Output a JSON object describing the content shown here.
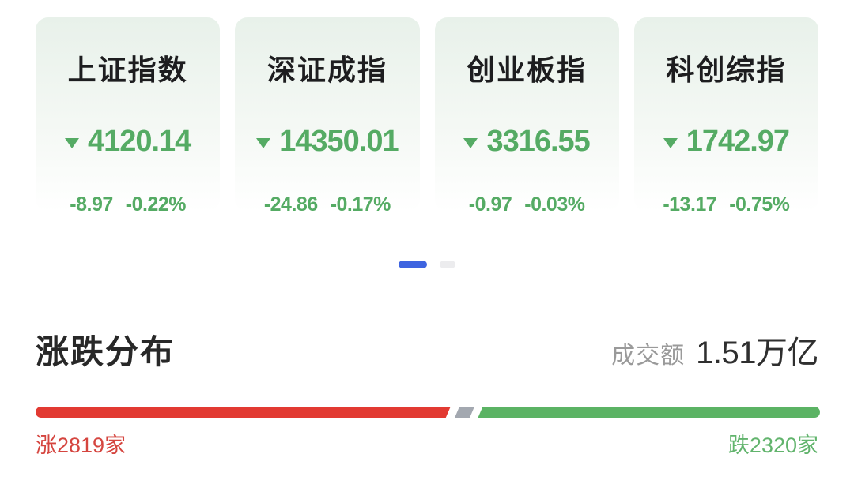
{
  "indices": {
    "cards": [
      {
        "name": "上证指数",
        "value": "4120.14",
        "change": "-8.97",
        "change_pct": "-0.22%",
        "direction": "down"
      },
      {
        "name": "深证成指",
        "value": "14350.01",
        "change": "-24.86",
        "change_pct": "-0.17%",
        "direction": "down"
      },
      {
        "name": "创业板指",
        "value": "3316.55",
        "change": "-0.97",
        "change_pct": "-0.03%",
        "direction": "down"
      },
      {
        "name": "科创综指",
        "value": "1742.97",
        "change": "-13.17",
        "change_pct": "-0.75%",
        "direction": "down"
      }
    ],
    "pagination": {
      "total_pages": 2,
      "active_page": 1
    }
  },
  "distribution": {
    "title": "涨跌分布",
    "turnover_label": "成交额",
    "turnover_value": "1.51万亿",
    "up_count": 2819,
    "down_count": 2320,
    "up_label": "涨2819家",
    "down_label": "跌2320家",
    "bar": {
      "up_width": "52.9%",
      "gap_width": "0.8%",
      "flat_width": "1.9%",
      "down_width": "43.6%"
    }
  },
  "colors": {
    "up_red": "#e23a32",
    "down_green": "#5bb364",
    "flat_gray": "#a3a8b0",
    "index_green": "#55ab64",
    "active_dot_blue": "#3e64e0",
    "card_mint": "#e8f1ea"
  }
}
